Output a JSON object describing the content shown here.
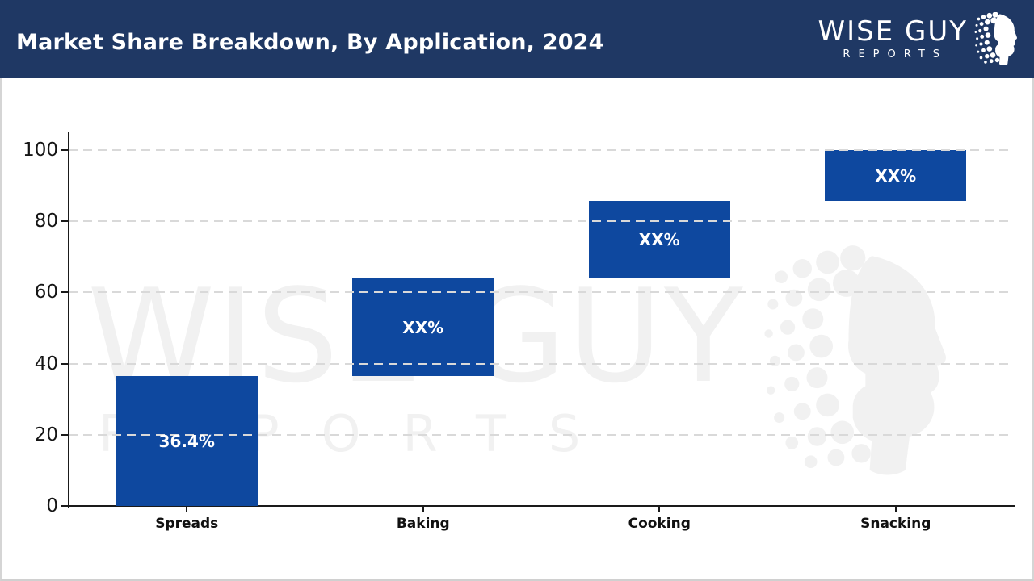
{
  "header": {
    "title": "Market Share Breakdown, By Application, 2024",
    "logo": {
      "wordmark": "WISE GUY",
      "subtitle": "REPORTS"
    }
  },
  "watermark": {
    "wordmark": "WISE GUY",
    "subtitle": "REPORTS"
  },
  "colors": {
    "header_bg": "#1f3864",
    "bar": "#0e489f",
    "grid": "#d9d9d9",
    "axis": "#1a1a1a",
    "watermark": "#f1f1f1",
    "bar_label": "#ffffff"
  },
  "chart_data": {
    "type": "bar",
    "subtype": "waterfall",
    "title": "Market Share Breakdown, By Application, 2024",
    "categories": [
      "Spreads",
      "Baking",
      "Cooking",
      "Snacking"
    ],
    "segments": [
      {
        "category": "Spreads",
        "start": 0,
        "end": 36.4,
        "label": "36.4%"
      },
      {
        "category": "Baking",
        "start": 36.4,
        "end": 64,
        "label": "XX%"
      },
      {
        "category": "Cooking",
        "start": 64,
        "end": 85.7,
        "label": "XX%"
      },
      {
        "category": "Snacking",
        "start": 85.7,
        "end": 100,
        "label": "XX%"
      }
    ],
    "yticks": [
      0,
      20,
      40,
      60,
      80,
      100
    ],
    "ylim": [
      0,
      105
    ],
    "xlabel": "",
    "ylabel": "",
    "grid": "horizontal-dashed",
    "legend": null
  }
}
